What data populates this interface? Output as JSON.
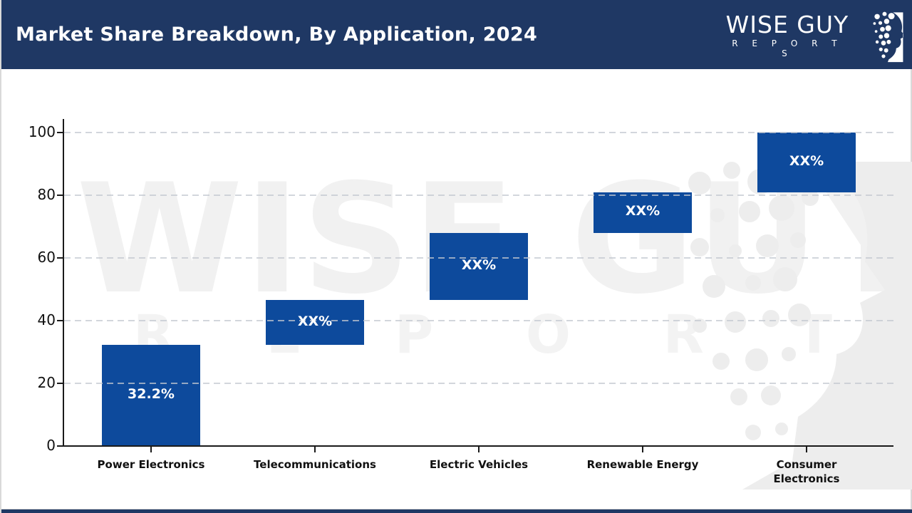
{
  "header": {
    "title": "Market Share Breakdown, By Application, 2024",
    "logo": {
      "primary": "WISE GUY",
      "secondary": "R E P O R T S"
    }
  },
  "watermark": {
    "primary": "WISE GUY",
    "secondary": "R E P O R T S"
  },
  "chart_data": {
    "type": "bar",
    "subtype": "waterfall",
    "title": "Market Share Breakdown, By Application, 2024",
    "categories": [
      "Power Electronics",
      "Telecommunications",
      "Electric Vehicles",
      "Renewable Energy",
      "Consumer Electronics"
    ],
    "segments": [
      {
        "category": "Power Electronics",
        "start": 0,
        "end": 32.2,
        "label": "32.2%"
      },
      {
        "category": "Telecommunications",
        "start": 32.2,
        "end": 46.5,
        "label": "XX%"
      },
      {
        "category": "Electric Vehicles",
        "start": 46.5,
        "end": 68,
        "label": "XX%"
      },
      {
        "category": "Renewable Energy",
        "start": 68,
        "end": 81,
        "label": "XX%"
      },
      {
        "category": "Consumer Electronics",
        "start": 81,
        "end": 100,
        "label": "XX%"
      }
    ],
    "yticks": [
      0,
      20,
      40,
      60,
      80,
      100
    ],
    "ylim": [
      0,
      104
    ],
    "xlabel": "",
    "ylabel": "",
    "grid": "horizontal-dashed",
    "legend": "none",
    "bar_color": "#0d4a9c",
    "bar_label_color": "#ffffff"
  },
  "colors": {
    "header_bg": "#1f3864",
    "bar": "#0d4a9c",
    "grid": "#d9d9d9",
    "axis": "#1a1a1a",
    "watermark": "#f1f1f1",
    "page_border": "#d9d9d9"
  }
}
